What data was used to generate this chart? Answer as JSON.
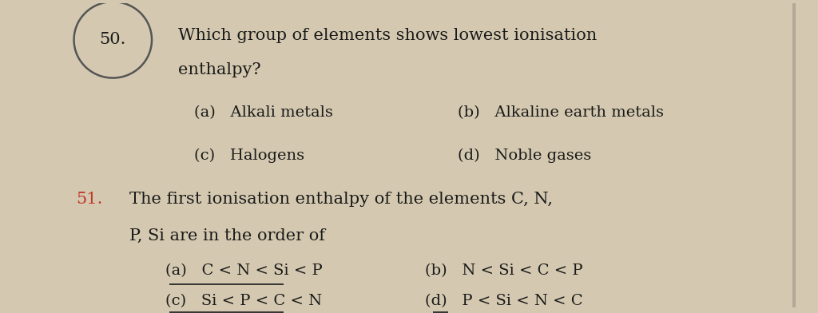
{
  "background_color": "#d4c9b0",
  "text_color": "#1a1a1a",
  "q50_number": "50.",
  "q50_question_line1": "Which group of elements shows lowest ionisation",
  "q50_question_line2": "enthalpy?",
  "q50_a": "(a)   Alkali metals",
  "q50_b": "(b)   Alkaline earth metals",
  "q50_c": "(c)   Halogens",
  "q50_d": "(d)   Noble gases",
  "q51_number_color": "#c0392b",
  "q51_number": "51.",
  "q51_question_line1": "The first ionisation enthalpy of the elements C, N,",
  "q51_question_line2": "P, Si are in the order of",
  "q51_a": "(a)   C < N < Si < P",
  "q51_b": "(b)   N < Si < C < P",
  "q51_c": "(c)   Si < P < C < N",
  "q51_d": "(d)   P < Si < N < C",
  "font_size_main": 15,
  "font_size_options": 14,
  "font_family": "serif",
  "circle_color": "#555555",
  "right_border_color": "#b5a898"
}
